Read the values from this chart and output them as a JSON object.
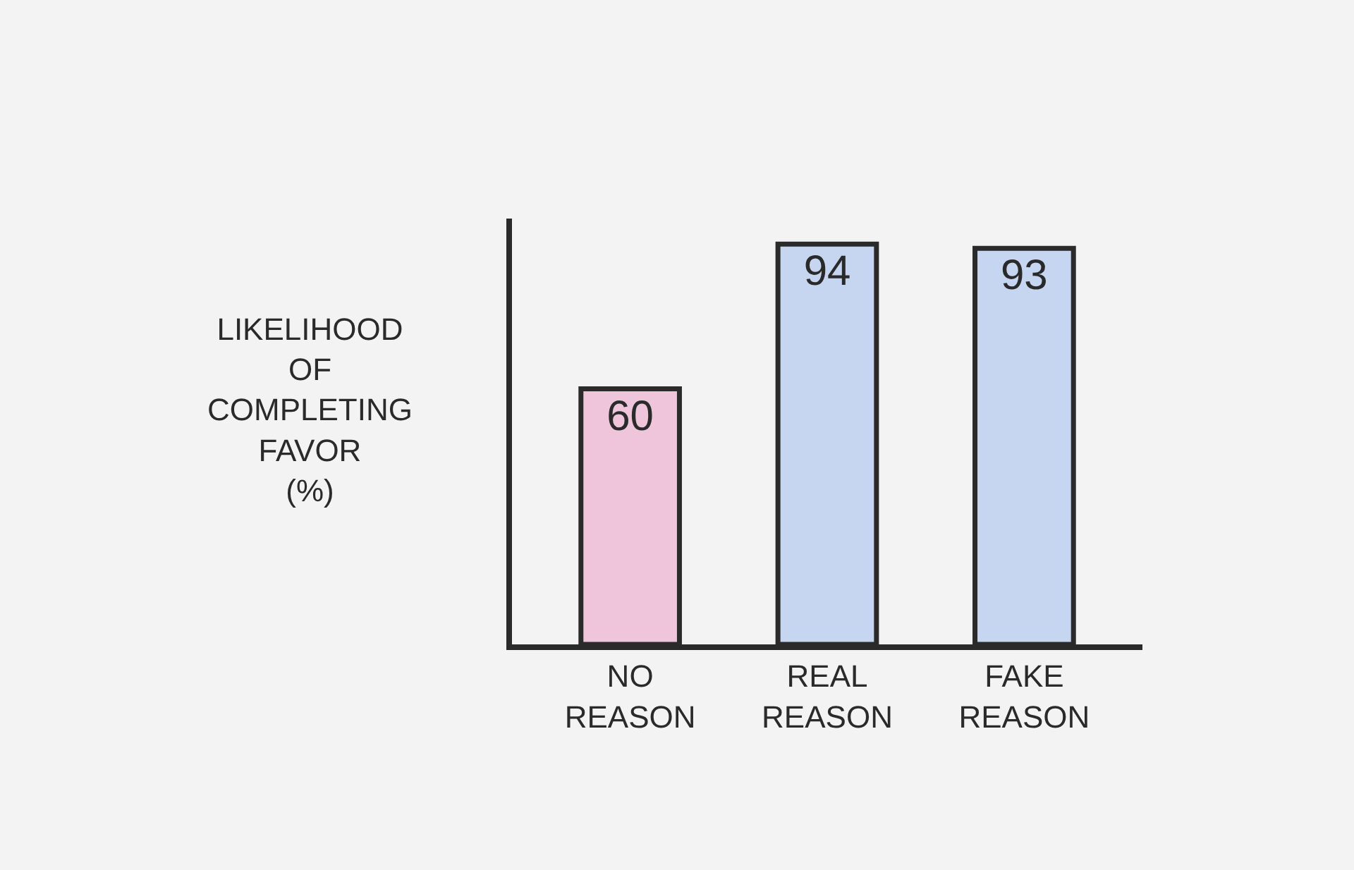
{
  "chart_data": {
    "type": "bar",
    "ylabel": "LIKELIHOOD OF COMPLETING FAVOR (%)",
    "categories": [
      "NO REASON",
      "REAL REASON",
      "FAKE REASON"
    ],
    "values": [
      60,
      94,
      93
    ],
    "colors": [
      "#efc5dc",
      "#c6d6f1",
      "#c6d6f1"
    ],
    "ylim": [
      0,
      100
    ],
    "data_labels": true,
    "tick_labels": "x"
  }
}
